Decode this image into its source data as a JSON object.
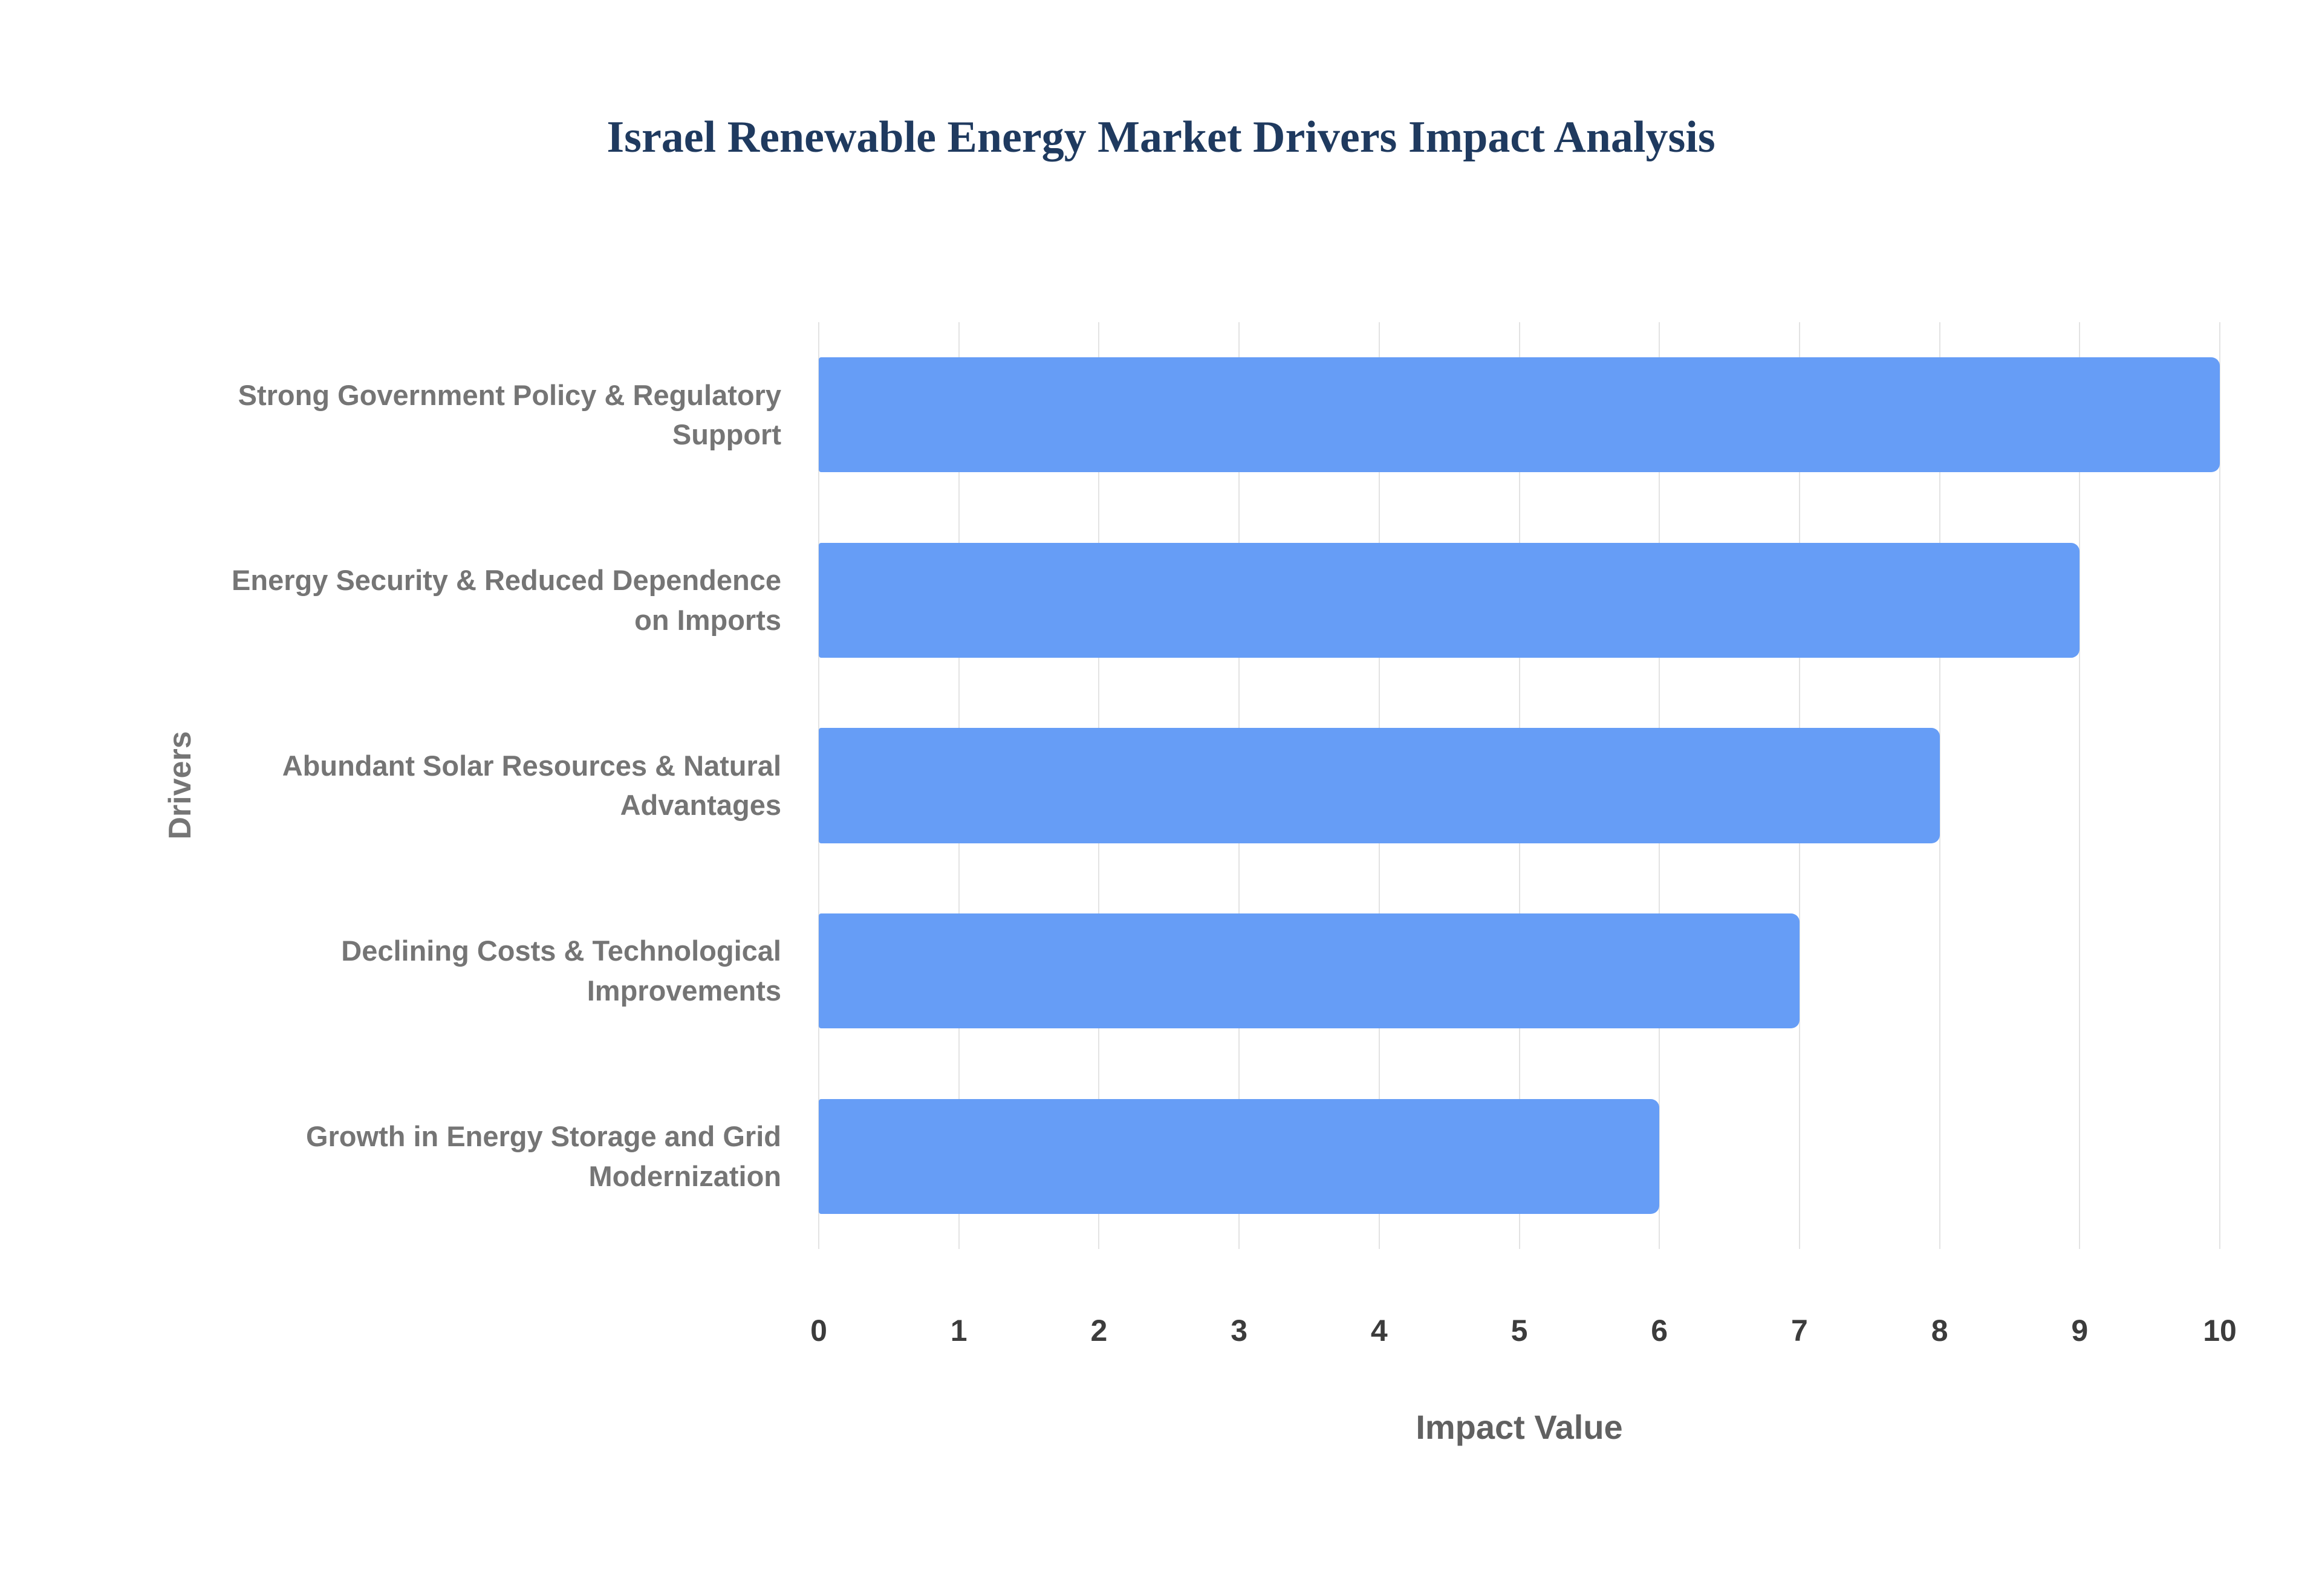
{
  "title": "Israel Renewable Energy Market Drivers Impact Analysis",
  "colors": {
    "bar": "#669DF6",
    "title": "#1F3A5F",
    "axis_label": "#757575",
    "tick": "#3C3C3C",
    "gridline": "#E3E3E3"
  },
  "chart_data": {
    "type": "bar",
    "orientation": "horizontal",
    "title": "Israel Renewable Energy Market Drivers Impact Analysis",
    "categories": [
      "Strong Government Policy & Regulatory Support",
      "Energy Security & Reduced Dependence on Imports",
      "Abundant Solar Resources & Natural Advantages",
      "Declining Costs & Technological Improvements",
      "Growth in Energy Storage and Grid Modernization"
    ],
    "values": [
      10,
      9,
      8,
      7,
      6
    ],
    "xlabel": "Impact Value",
    "ylabel": "Drivers",
    "xlim": [
      0,
      10
    ],
    "xticks": [
      0,
      1,
      2,
      3,
      4,
      5,
      6,
      7,
      8,
      9,
      10
    ],
    "grid": "vertical",
    "legend": "none"
  }
}
